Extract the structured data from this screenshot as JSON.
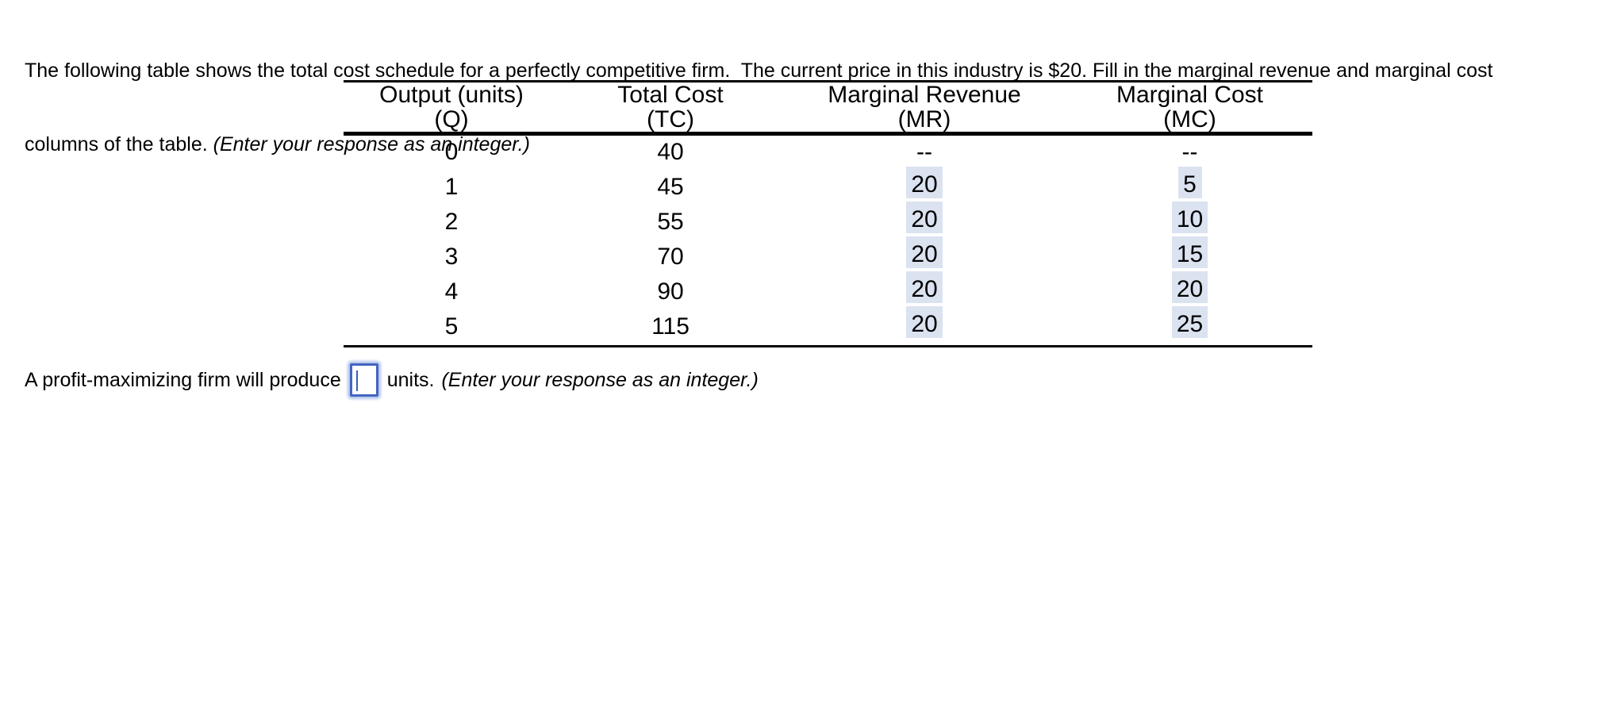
{
  "colors": {
    "page_bg": "#ffffff",
    "text_color": "#000000",
    "rule_color": "#000000",
    "highlight_bg": "#dbe2f0",
    "input_border": "#4265c3",
    "input_glow": "#b3c5ea",
    "caret_color": "#3a5db8"
  },
  "intro": {
    "line1": "The following table shows the total cost schedule for a perfectly competitive firm.  The current price in this industry is $20. Fill in the marginal revenue and marginal cost",
    "line2_text": "columns of the table. ",
    "line2_instruction": "(Enter your response as an integer.)"
  },
  "table": {
    "headers": [
      {
        "line1": "Output (units)",
        "line2": "(Q)"
      },
      {
        "line1": "Total Cost",
        "line2": "(TC)"
      },
      {
        "line1": "Marginal Revenue",
        "line2": "(MR)"
      },
      {
        "line1": "Marginal Cost",
        "line2": "(MC)"
      }
    ],
    "rows": [
      {
        "q": "0",
        "tc": "40",
        "mr": "--",
        "mc": "--",
        "mr_filled": false,
        "mc_filled": false
      },
      {
        "q": "1",
        "tc": "45",
        "mr": "20",
        "mc": "5",
        "mr_filled": true,
        "mc_filled": true
      },
      {
        "q": "2",
        "tc": "55",
        "mr": "20",
        "mc": "10",
        "mr_filled": true,
        "mc_filled": true
      },
      {
        "q": "3",
        "tc": "70",
        "mr": "20",
        "mc": "15",
        "mr_filled": true,
        "mc_filled": true
      },
      {
        "q": "4",
        "tc": "90",
        "mr": "20",
        "mc": "20",
        "mr_filled": true,
        "mc_filled": true
      },
      {
        "q": "5",
        "tc": "115",
        "mr": "20",
        "mc": "25",
        "mr_filled": true,
        "mc_filled": true
      }
    ]
  },
  "answer": {
    "prefix": "A profit-maximizing firm will produce",
    "input_value": "",
    "suffix": "units. ",
    "instruction": "(Enter your response as an integer.)"
  }
}
